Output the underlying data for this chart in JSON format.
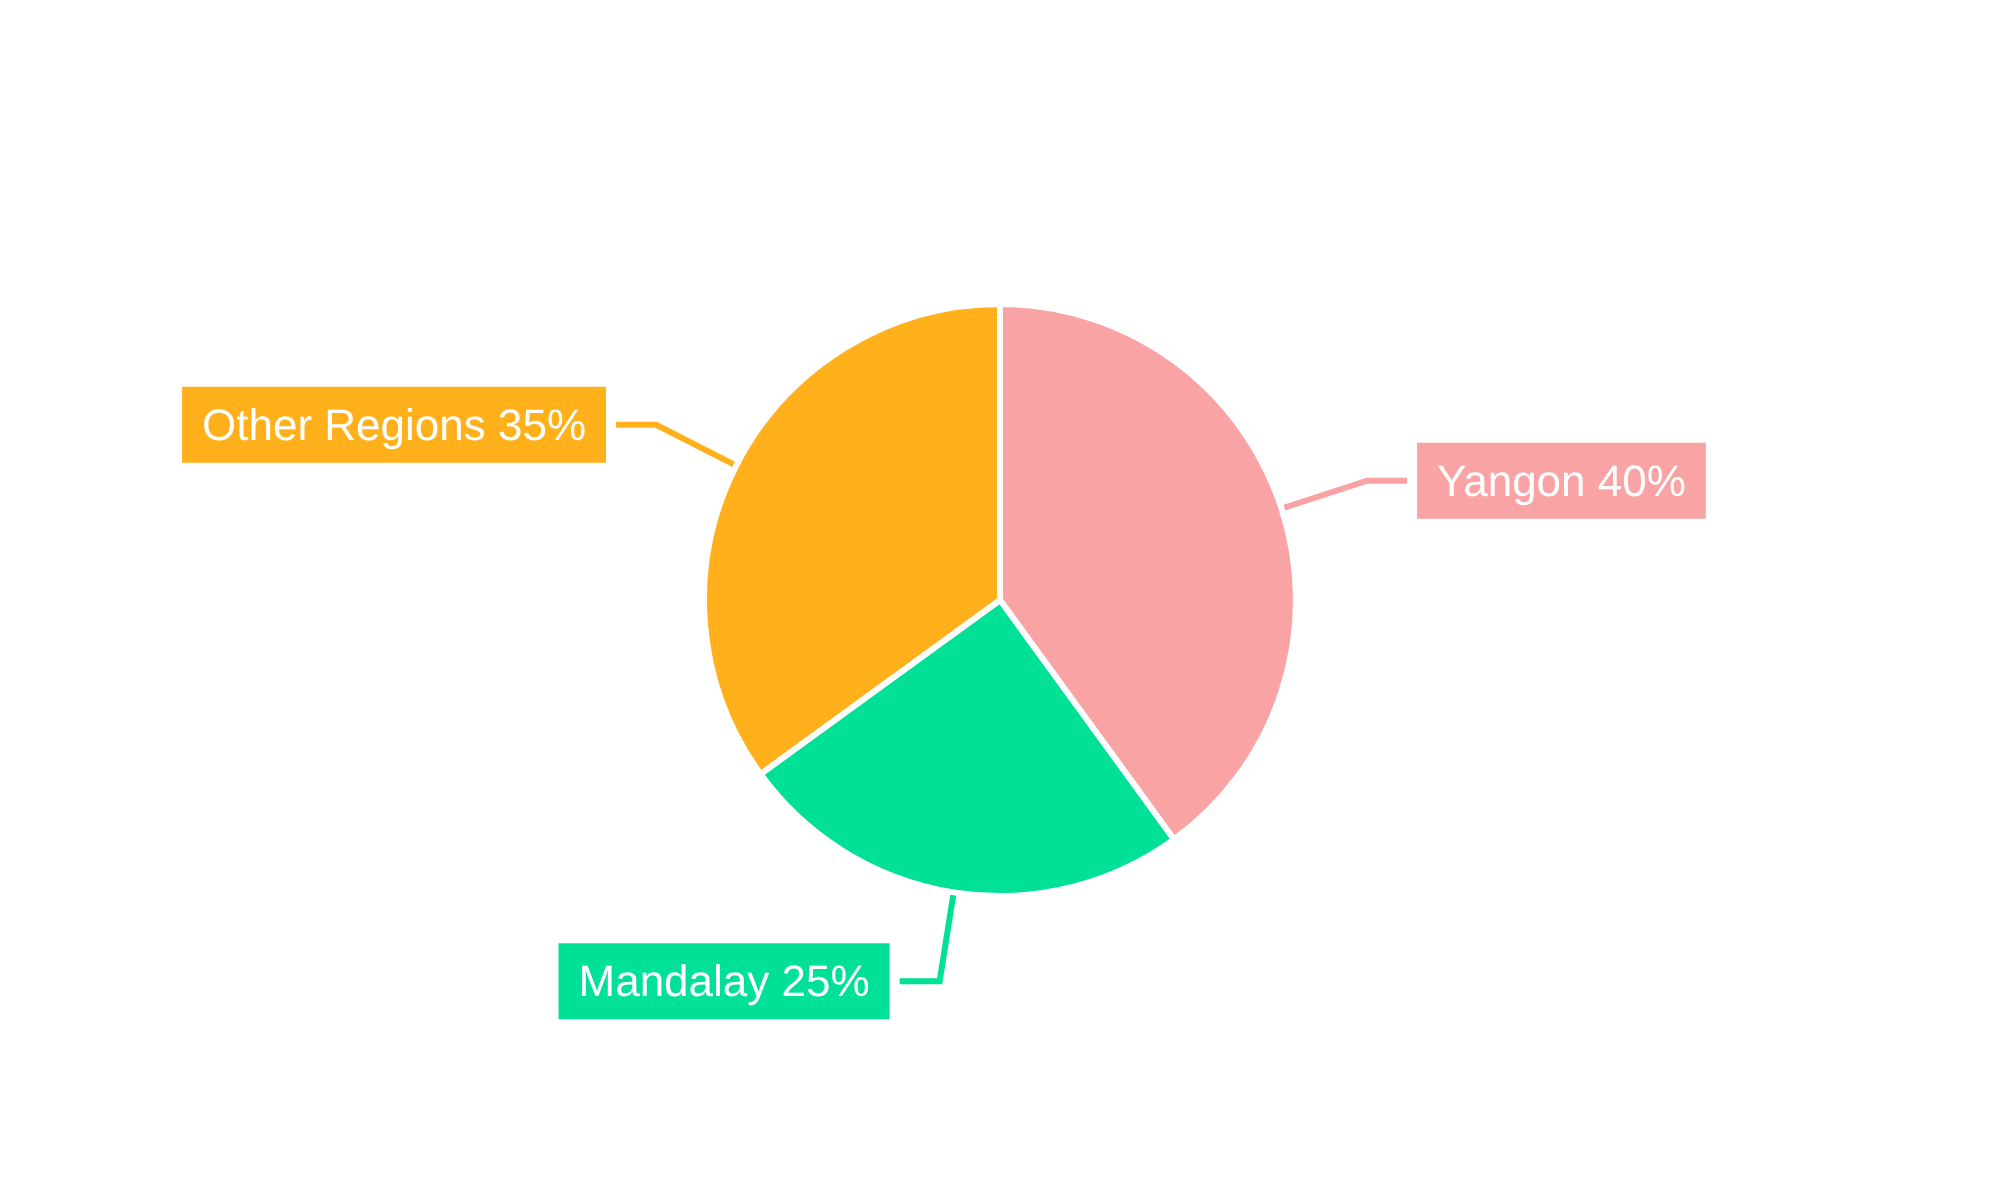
{
  "chart_data": {
    "type": "pie",
    "categories": [
      "Yangon",
      "Mandalay",
      "Other Regions"
    ],
    "values": [
      40,
      25,
      35
    ],
    "value_labels": [
      "40%",
      "25%",
      "35%"
    ],
    "colors": [
      "#f9a3a4",
      "#00e096",
      "#ffb01a"
    ],
    "legend": false
  }
}
